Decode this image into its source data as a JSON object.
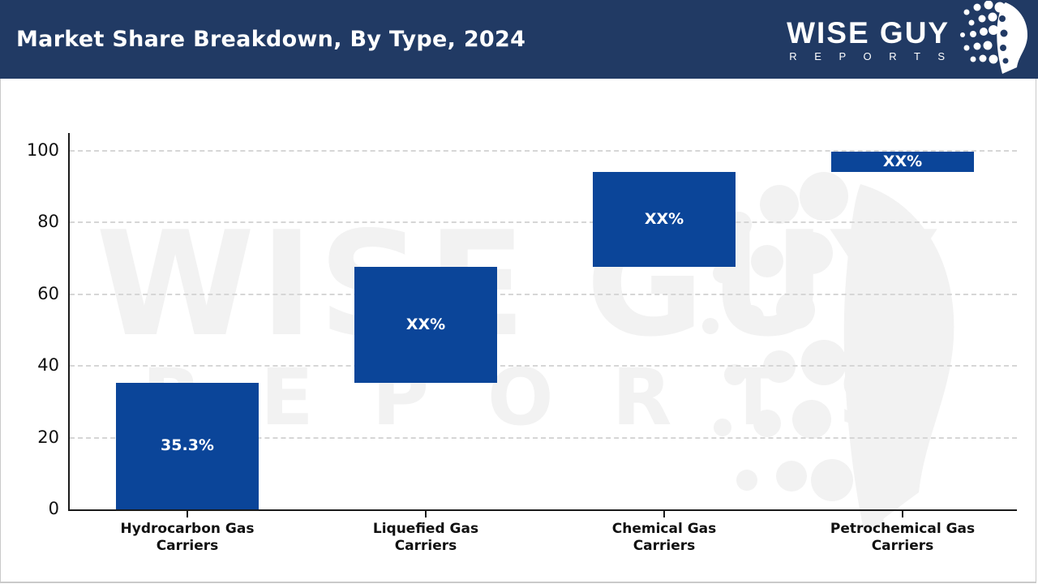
{
  "header": {
    "title": "Market Share Breakdown, By Type, 2024",
    "logo": {
      "name": "WISE GUY",
      "sub": "R E P O R T S"
    }
  },
  "watermark": {
    "line1": "WISE GUY",
    "line2": "REPORTS"
  },
  "chart_data": {
    "type": "bar",
    "subtype": "waterfall",
    "title": "Market Share Breakdown, By Type, 2024",
    "categories": [
      "Hydrocarbon Gas Carriers",
      "Liquefied Gas Carriers",
      "Chemical Gas Carriers",
      "Petrochemical Gas Carriers"
    ],
    "segments": [
      {
        "category": "Hydrocarbon Gas Carriers",
        "start": 0,
        "end": 35.3,
        "label": "35.3%"
      },
      {
        "category": "Liquefied Gas Carriers",
        "start": 35.3,
        "end": 67.7,
        "label": "XX%"
      },
      {
        "category": "Chemical Gas Carriers",
        "start": 67.7,
        "end": 94.2,
        "label": "XX%"
      },
      {
        "category": "Petrochemical Gas Carriers",
        "start": 94.2,
        "end": 99.8,
        "label": "XX%"
      }
    ],
    "xlabel": "",
    "ylabel": "",
    "ylim": [
      0,
      100
    ],
    "yticks": [
      0,
      20,
      40,
      60,
      80,
      100
    ],
    "grid": "horizontal-dashed",
    "legend": "none",
    "bar_color": "#0b4599",
    "header_color": "#213a64",
    "grid_color": "#d6d6d6",
    "axis_color": "#1a1a1a",
    "bar_label_color": "#ffffff"
  }
}
